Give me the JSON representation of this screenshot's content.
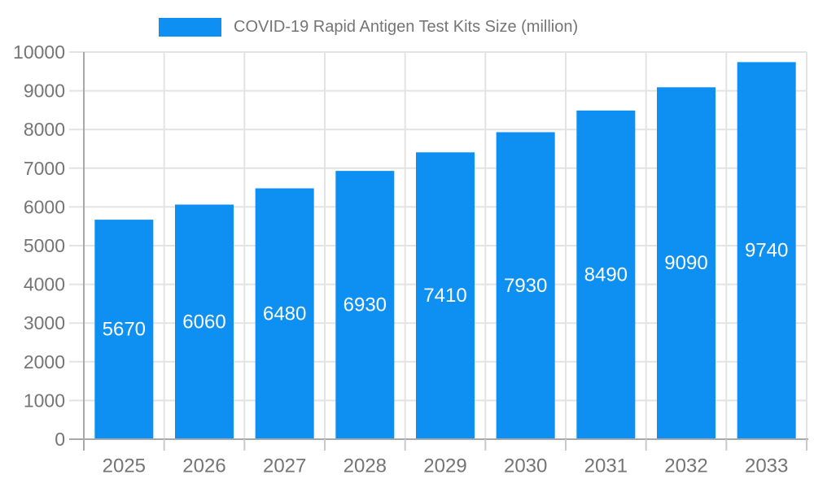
{
  "page": {
    "background_color": "#ffffff"
  },
  "legend": {
    "position": "top",
    "swatch_color": "#0d90f2"
  },
  "chart_data": {
    "type": "bar",
    "title": "COVID-19 Rapid Antigen Test Kits Size (million)",
    "categories": [
      "2025",
      "2026",
      "2027",
      "2028",
      "2029",
      "2030",
      "2031",
      "2032",
      "2033"
    ],
    "values": [
      5670,
      6060,
      6480,
      6930,
      7410,
      7930,
      8490,
      9090,
      9740
    ],
    "xlabel": "",
    "ylabel": "",
    "ylim": [
      0,
      10000
    ],
    "ytick_step": 1000,
    "ytick_labels": [
      "0",
      "1000",
      "2000",
      "3000",
      "4000",
      "5000",
      "6000",
      "7000",
      "8000",
      "9000",
      "10000"
    ],
    "grid": true,
    "legend_position": "top",
    "colors": {
      "bar": "#0d90f2",
      "bar_label": "#ffffff",
      "axis_label": "#757575",
      "grid_line": "#e3e3e3",
      "axis_line": "#a8a8a8",
      "x_tick": "#c9c9c9"
    }
  }
}
